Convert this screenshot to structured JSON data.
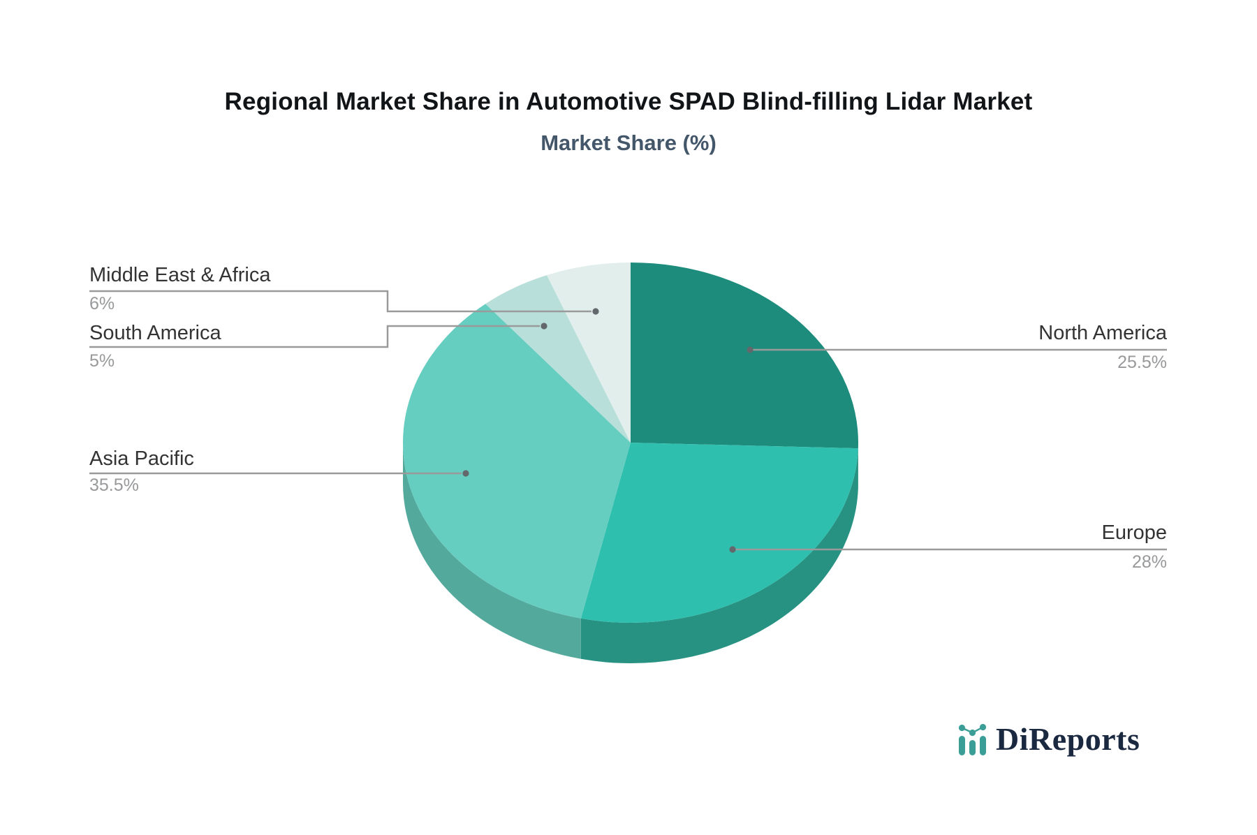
{
  "chart_data": {
    "type": "pie",
    "title": "Regional Market Share in Automotive SPAD Blind-filling Lidar Market",
    "subtitle": "Market Share (%)",
    "unit": "percent",
    "style": "3d-depth-pie",
    "start_angle": "12-oclock",
    "direction": "clockwise",
    "legend": "callout-labels",
    "slices": [
      {
        "label": "North America",
        "value": 25.5,
        "display_value": "25.5%",
        "color": "#1d8c7c",
        "side_color": "#1a7568"
      },
      {
        "label": "Europe",
        "value": 28,
        "display_value": "28%",
        "color": "#2fbfae",
        "side_color": "#279182"
      },
      {
        "label": "Asia Pacific",
        "value": 35.5,
        "display_value": "35.5%",
        "color": "#66cec1",
        "side_color": "#54a99d"
      },
      {
        "label": "South America",
        "value": 5,
        "display_value": "5%",
        "color": "#b8dfd9",
        "side_color": "#9cc4bd"
      },
      {
        "label": "Middle East & Africa",
        "value": 6,
        "display_value": "6%",
        "color": "#e1eeeb",
        "side_color": "#c2d4d0"
      }
    ],
    "label_color": "#333333",
    "value_color": "#98999b",
    "line_color": "#9a9a9a",
    "dot_color": "#63686c"
  },
  "branding": {
    "logo_text": "DiReports",
    "logo_icon": "bar-line-chart-icon",
    "text_color": "#1a2840",
    "icon_color": "#3a9e97"
  }
}
